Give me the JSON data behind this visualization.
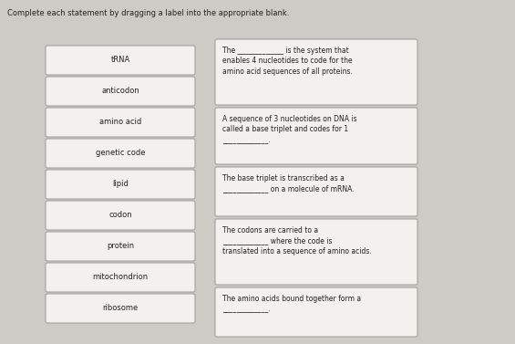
{
  "title": "Complete each statement by dragging a label into the appropriate blank.",
  "title_fontsize": 6.0,
  "background_color": "#cccbc5",
  "box_facecolor": "#f2f1ed",
  "box_edgecolor": "#999999",
  "text_color": "#222222",
  "labels": [
    "tRNA",
    "anticodon",
    "amino acid",
    "genetic code",
    "lipid",
    "codon",
    "protein",
    "mitochondrion",
    "ribosome"
  ],
  "statements": [
    "The _____________ is the system that\nenables 4 nucleotides to code for the\namino acid sequences of all proteins.",
    "A sequence of 3 nucleotides on DNA is\ncalled a base triplet and codes for 1\n_____________.",
    "The base triplet is transcribed as a\n_____________ on a molecule of mRNA.",
    "The codons are carried to a\n_____________ where the code is\ntranslated into a sequence of amino acids.",
    "The amino acids bound together form a\n_____________."
  ],
  "font_size_label": 6.0,
  "font_size_stmt": 5.5,
  "font_size_title": 6.0
}
